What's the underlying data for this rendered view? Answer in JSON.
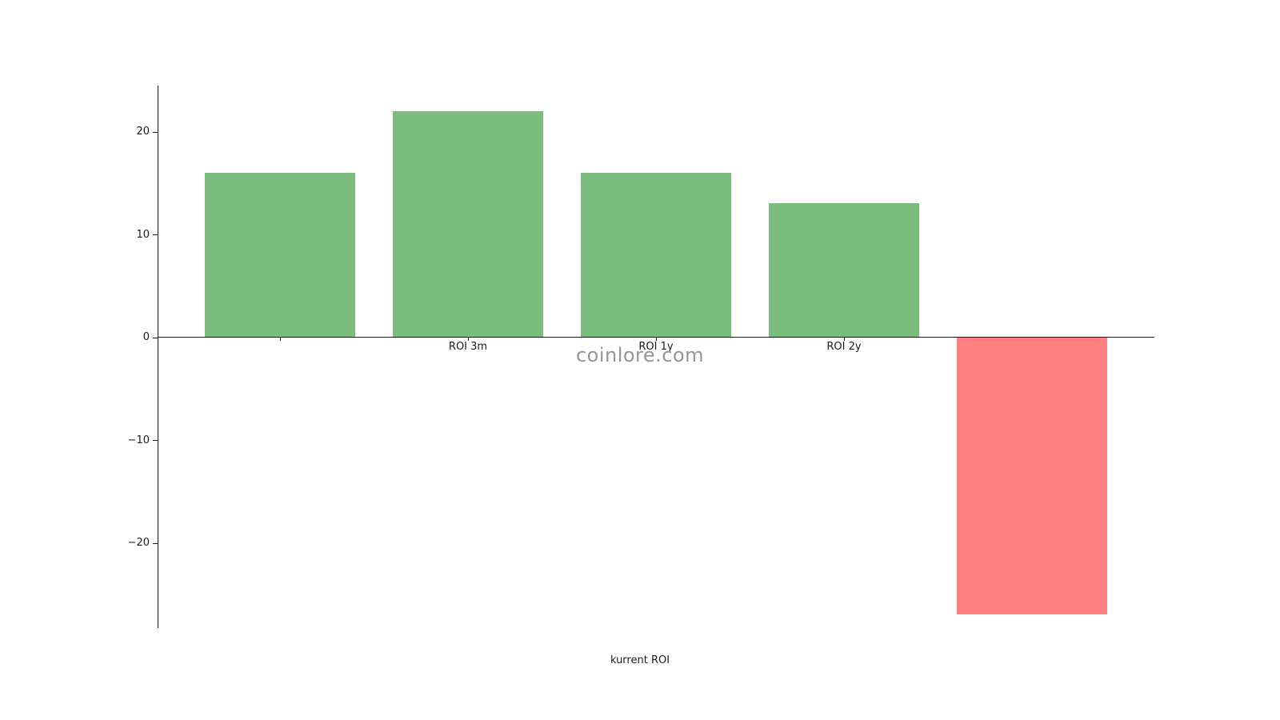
{
  "watermark": {
    "text": "coinlore.com",
    "color": "#969696"
  },
  "chart_data": {
    "type": "bar",
    "title": "",
    "xlabel": "kurrent ROI",
    "ylabel": "",
    "categories": [
      "",
      "ROI 3m",
      "ROI 1y",
      "ROI 2y",
      ""
    ],
    "values": [
      16,
      22,
      16,
      13,
      -27
    ],
    "series": [
      {
        "name": "kurrent ROI",
        "values": [
          16,
          22,
          16,
          13,
          -27
        ]
      }
    ],
    "bar_colors": [
      "#7cbd7e",
      "#7cbd7e",
      "#7cbd7e",
      "#7cbd7e",
      "#ff8080"
    ],
    "positive_color": "#7cbd7e",
    "negative_color": "#ff8080",
    "y_ticks": [
      20,
      10,
      0,
      -10,
      -20
    ],
    "ylim": [
      -28.3,
      24.5
    ],
    "grid": false,
    "legend_position": "none",
    "x_tick_visible": [
      true,
      true,
      true,
      true,
      false
    ]
  }
}
